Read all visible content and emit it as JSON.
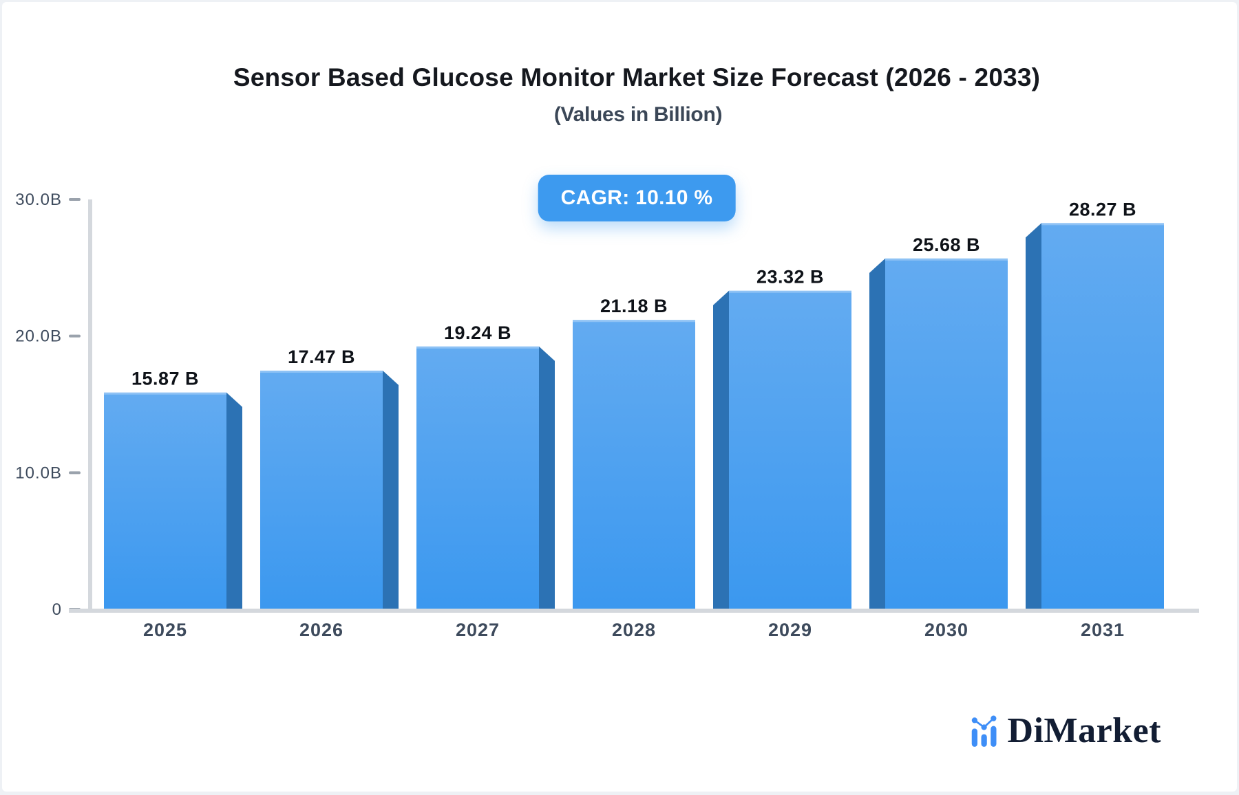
{
  "page": {
    "title": "Sensor Based Glucose Monitor Market Size Forecast (2026 - 2033)",
    "subtitle": "(Values in Billion)",
    "cagr_badge": "CAGR: 10.10 %"
  },
  "brand": {
    "name": "DiMarket",
    "icon": "bar-line-chart-icon",
    "icon_color": "#3e8ef7",
    "text_color": "#121d33"
  },
  "colors": {
    "accent": "#3d9aef",
    "bar_front_top": "#63abf1",
    "bar_front_bottom": "#3b98ef",
    "bar_side": "#2c72b4",
    "axis_line": "#d4d8dd",
    "tick_dash": "#9aa2ac",
    "tick_label": "#3e4b5d",
    "category_label": "#3d4a5c",
    "value_label": "#0e1218",
    "card_background": "#ffffff",
    "page_background": "#eef1f5"
  },
  "chart_data": {
    "type": "bar",
    "style": "3d-extruded-bars",
    "title": "Sensor Based Glucose Monitor Market Size Forecast (2026 - 2033)",
    "subtitle": "(Values in Billion)",
    "annotation": "CAGR: 10.10 %",
    "categories": [
      "2025",
      "2026",
      "2027",
      "2028",
      "2029",
      "2030",
      "2031"
    ],
    "values": [
      15.87,
      17.47,
      19.24,
      21.18,
      23.32,
      25.68,
      28.27
    ],
    "value_labels": [
      "15.87 B",
      "17.47 B",
      "19.24 B",
      "21.18 B",
      "23.32 B",
      "25.68 B",
      "28.27 B"
    ],
    "xlabel": "",
    "ylabel": "",
    "ylim": [
      0,
      30
    ],
    "yticks": [
      {
        "value": 0,
        "label": "0"
      },
      {
        "value": 10,
        "label": "10.0B"
      },
      {
        "value": 20,
        "label": "20.0B"
      },
      {
        "value": 30,
        "label": "30.0B"
      }
    ],
    "grid": false,
    "legend": "none"
  }
}
